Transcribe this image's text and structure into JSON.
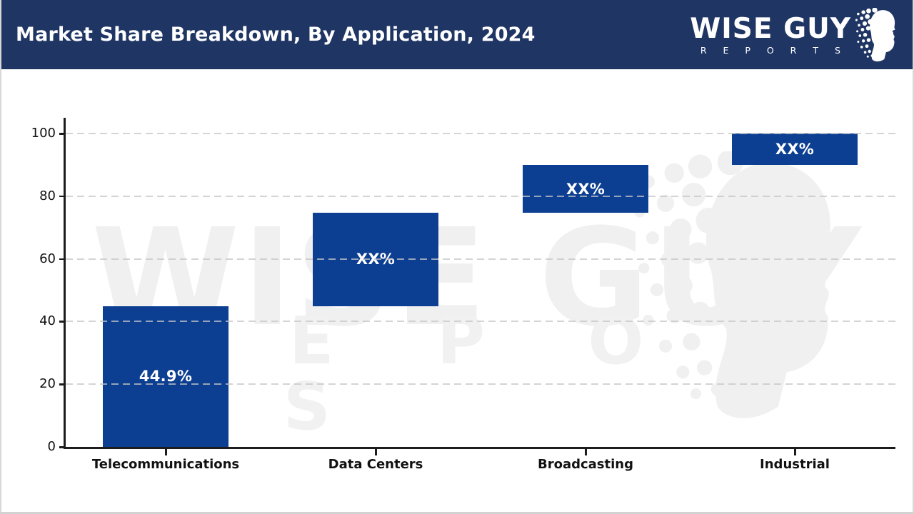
{
  "header": {
    "title": "Market Share Breakdown, By Application, 2024",
    "bg_color": "#1f3564",
    "logo": {
      "line1": "WISE GUY",
      "line2": "R E P O R T S"
    }
  },
  "watermark": {
    "line1": "WISE GUY",
    "line2": "R E P O R T S"
  },
  "chart_data": {
    "type": "bar",
    "variant": "waterfall",
    "title": "Market Share Breakdown, By Application, 2024",
    "categories": [
      "Telecommunications",
      "Data Centers",
      "Broadcasting",
      "Industrial"
    ],
    "series": [
      {
        "name": "Market share by application",
        "segments": [
          {
            "category": "Telecommunications",
            "start": 0,
            "end": 44.9,
            "label": "44.9%"
          },
          {
            "category": "Data Centers",
            "start": 44.9,
            "end": 74.7,
            "label": "XX%"
          },
          {
            "category": "Broadcasting",
            "start": 74.7,
            "end": 89.9,
            "label": "XX%"
          },
          {
            "category": "Industrial",
            "start": 89.9,
            "end": 100,
            "label": "XX%"
          }
        ]
      }
    ],
    "xlabel": "",
    "ylabel": "",
    "ylim": [
      0,
      104
    ],
    "yticks": [
      0,
      20,
      40,
      60,
      80,
      100
    ],
    "grid": "horizontal-dashed",
    "legend": "none",
    "bar_color": "#0c3e92",
    "axis_color": "#1c1c1c",
    "gridline_color": "#c6c6c6"
  }
}
